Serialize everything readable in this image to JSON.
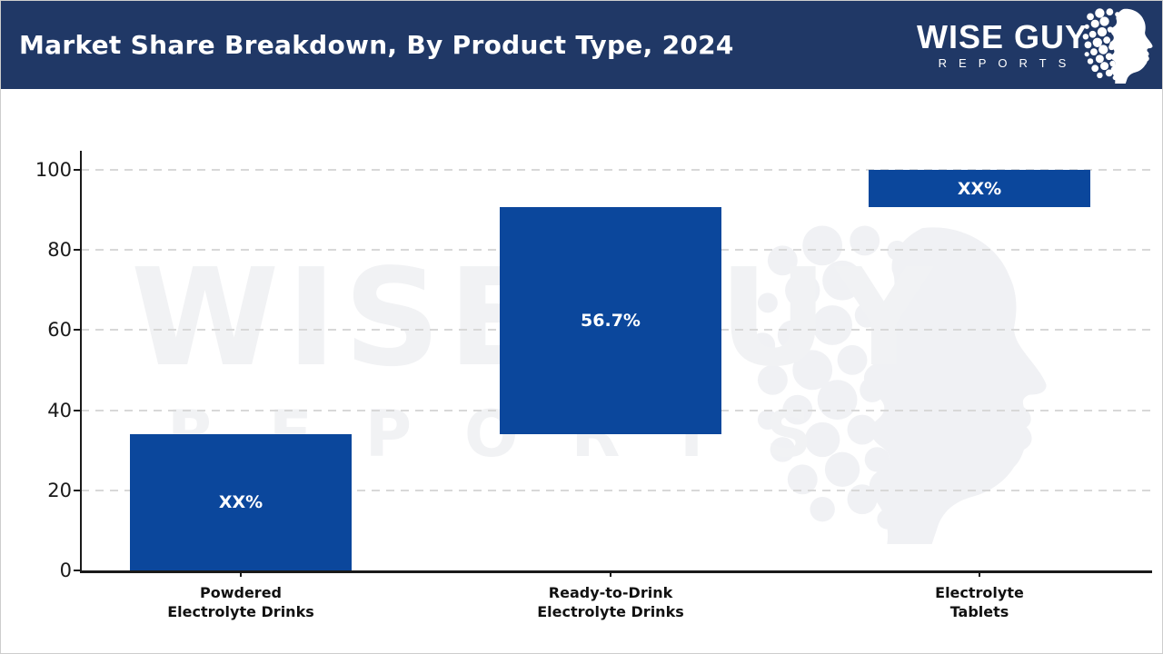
{
  "header": {
    "title": "Market Share Breakdown, By Product Type, 2024",
    "logo": {
      "line1": "WISE GUY",
      "line2": "REPORTS"
    }
  },
  "watermark": {
    "line1": "WISE GUY",
    "line2": "REPORTS"
  },
  "chart_data": {
    "type": "bar",
    "subtype": "stacked-waterfall",
    "title": "Market Share Breakdown, By Product Type, 2024",
    "categories": [
      "Powdered Electrolyte Drinks",
      "Ready-to-Drink Electrolyte Drinks",
      "Electrolyte Tablets"
    ],
    "category_lines": [
      [
        "Powdered",
        "Electrolyte Drinks"
      ],
      [
        "Ready-to-Drink",
        "Electrolyte Drinks"
      ],
      [
        "Electrolyte",
        "Tablets"
      ]
    ],
    "segments": [
      {
        "category": "Powdered Electrolyte Drinks",
        "start": 0,
        "end": 34,
        "label": "XX%"
      },
      {
        "category": "Ready-to-Drink Electrolyte Drinks",
        "start": 34,
        "end": 90.7,
        "label": "56.7%"
      },
      {
        "category": "Electrolyte Tablets",
        "start": 90.7,
        "end": 100,
        "label": "XX%"
      }
    ],
    "xlabel": "",
    "ylabel": "",
    "ylim": [
      0,
      100
    ],
    "yticks": [
      0,
      20,
      40,
      60,
      80,
      100
    ],
    "grid": "horizontal-dashed",
    "legend": "none",
    "colors": {
      "bar": "#0b479c",
      "bar_label": "#ffffff",
      "header_bg": "#203866",
      "gridline": "#d8d8d8",
      "axis": "#1a1a1a"
    }
  }
}
